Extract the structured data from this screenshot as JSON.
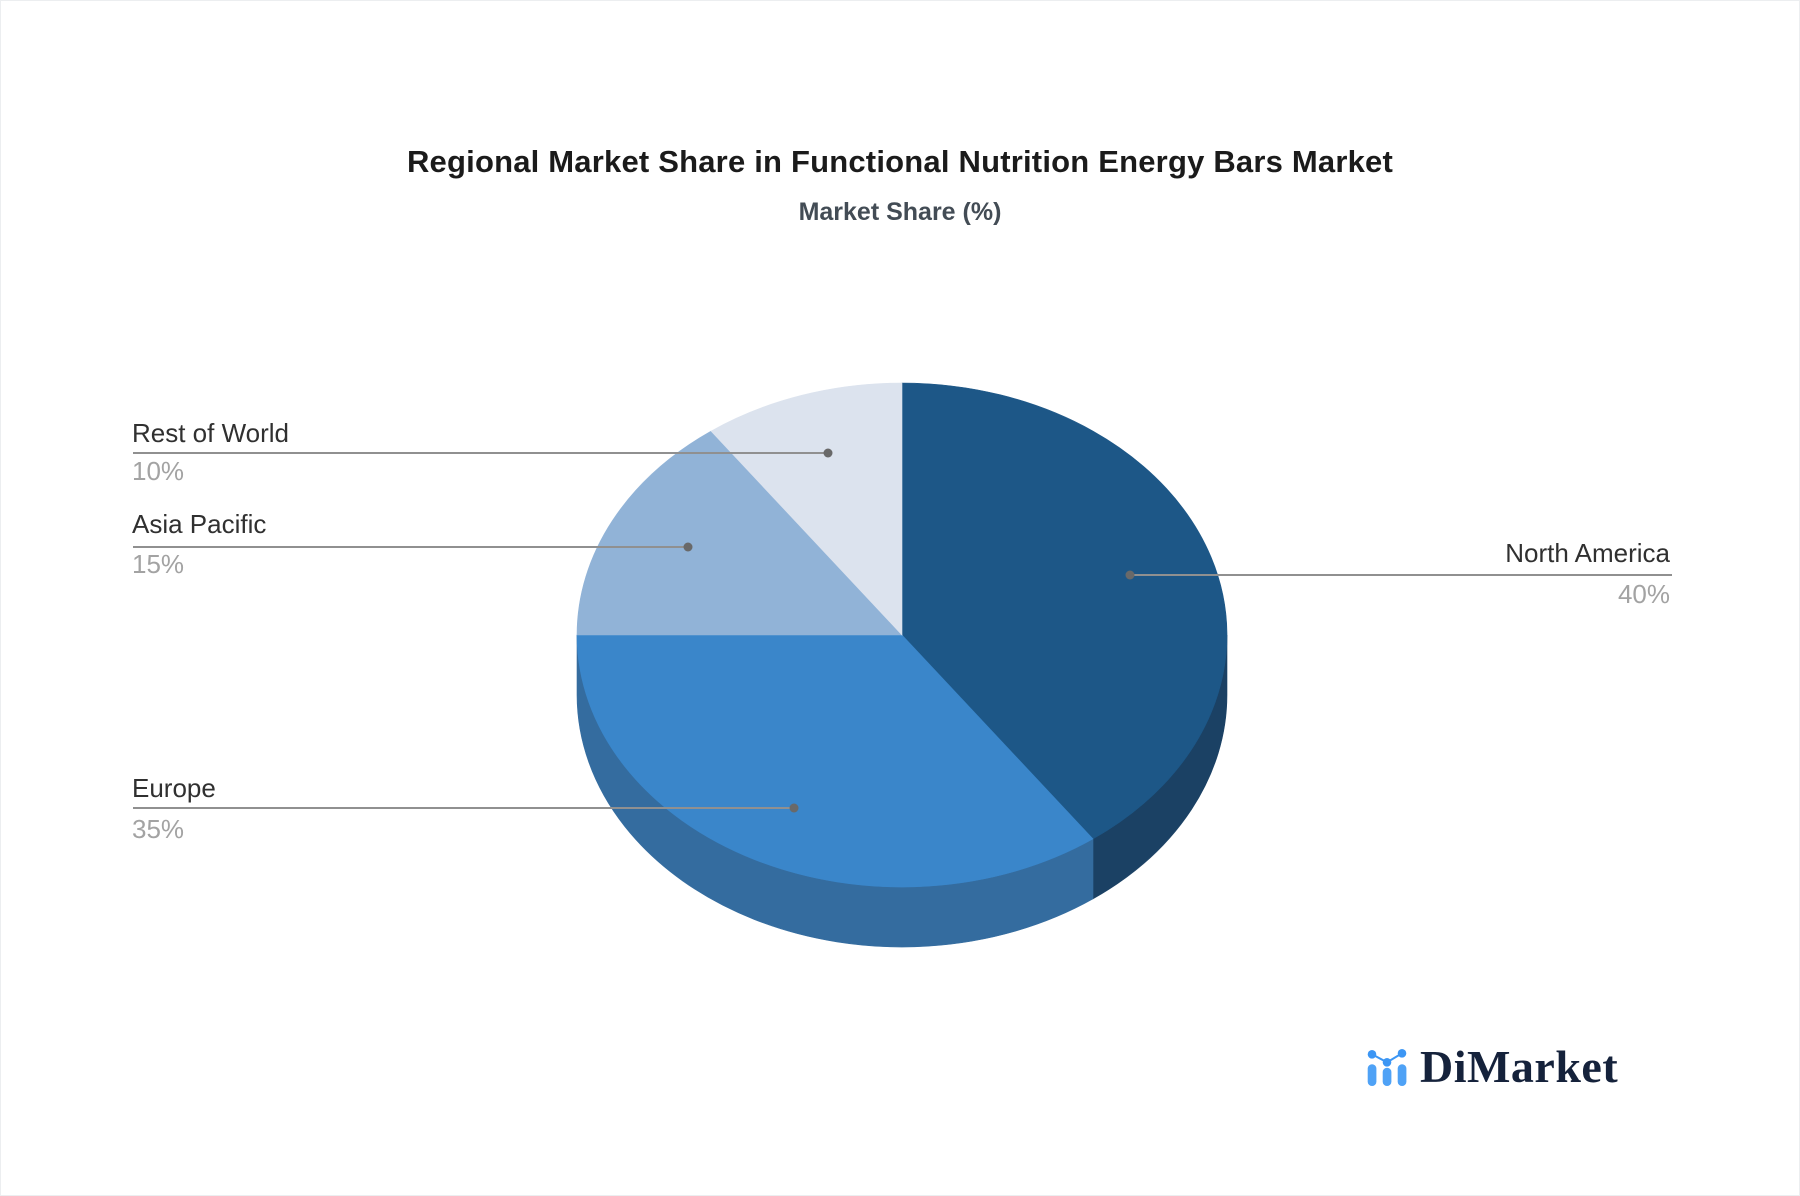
{
  "chart_data": {
    "type": "pie",
    "title": "Regional Market Share in Functional Nutrition Energy Bars Market",
    "subtitle": "Market Share (%)",
    "unit": "%",
    "start_angle": "top",
    "direction": "clockwise",
    "effect": "3d-depth",
    "legend_position": "none",
    "slices": [
      {
        "label": "North America",
        "value": 40,
        "display": "40%",
        "color": "#1d5787",
        "side_color": "#1b4164",
        "label_side": "right"
      },
      {
        "label": "Europe",
        "value": 35,
        "display": "35%",
        "color": "#3a86ca",
        "side_color": "#346c9f",
        "label_side": "left"
      },
      {
        "label": "Asia Pacific",
        "value": 15,
        "display": "15%",
        "color": "#91b3d7",
        "side_color": "#6e93b8",
        "label_side": "left"
      },
      {
        "label": "Rest of World",
        "value": 10,
        "display": "10%",
        "color": "#dce3ee",
        "side_color": "#b4c1d4",
        "label_side": "left"
      }
    ],
    "style": {
      "leader_line_color": "#909090",
      "leader_dot_color": "#696969",
      "label_color": "#303030",
      "value_color": "#a3a3a3",
      "title_color": "#1b1b1b",
      "subtitle_color": "#434c55"
    }
  },
  "branding": {
    "name": "DiMarket",
    "icon": "bar-line-chart-logo-icon",
    "bar_color": "#4fa2f6",
    "accent_color": "#3c96f4",
    "text_color": "#15223b"
  }
}
